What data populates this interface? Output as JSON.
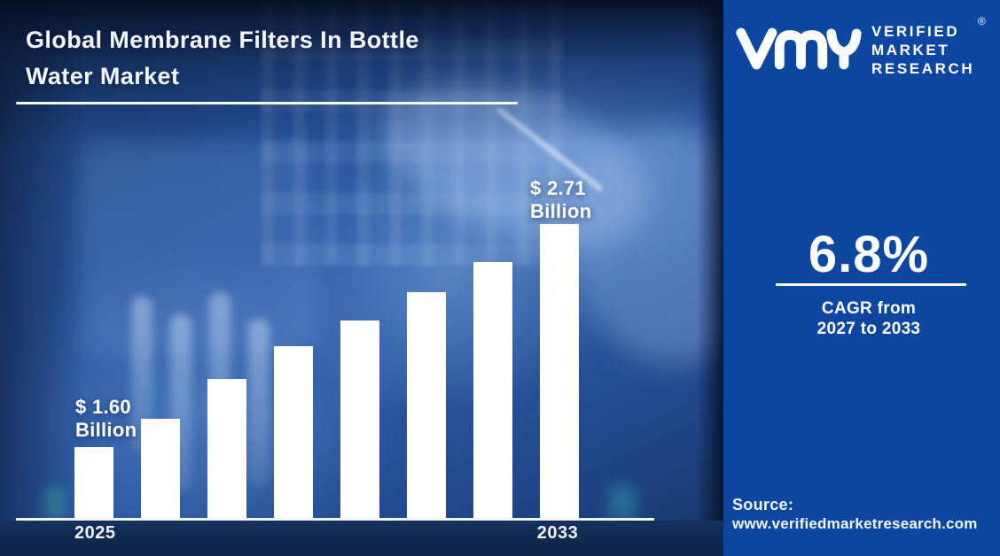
{
  "header": {
    "title_line1": "Global Membrane Filters In Bottle",
    "title_line2": "Water Market"
  },
  "brand": {
    "logo_icon": "vmr-monogram",
    "wordmark_line1": "VERIFIED",
    "wordmark_line2": "MARKET",
    "wordmark_line3": "RESEARCH",
    "registered_mark": "®"
  },
  "kpi": {
    "value": "6.8%",
    "caption_line1": "CAGR from",
    "caption_line2": "2027 to 2033"
  },
  "source": {
    "label": "Source:",
    "url": "www.verifiedmarketresearch.com"
  },
  "colors": {
    "panel_blue": "#0d47a1",
    "photo_blue_mid": "#2a5aa8",
    "navy_band": "#122a52",
    "bar_color": "#ffffff",
    "text_color": "#ffffff"
  },
  "chart_data": {
    "type": "bar",
    "title": "Global Membrane Filters In Bottle Water Market",
    "unit": "USD Billion",
    "categories": [
      "2025",
      "",
      "",
      "",
      "",
      "",
      "",
      "2033"
    ],
    "values": [
      1.6,
      1.74,
      1.94,
      2.1,
      2.23,
      2.37,
      2.52,
      2.71
    ],
    "first_bar_label_line1": "$ 1.60",
    "first_bar_label_line2": "Billion",
    "last_bar_label_line1": "$ 2.71",
    "last_bar_label_line2": "Billion",
    "x_axis_labels_shown": [
      "2025",
      "2033"
    ],
    "ylabel": "",
    "xlabel": "",
    "ylim": [
      1.23,
      2.8
    ],
    "grid": false,
    "legend": false,
    "bar_color": "#ffffff"
  }
}
